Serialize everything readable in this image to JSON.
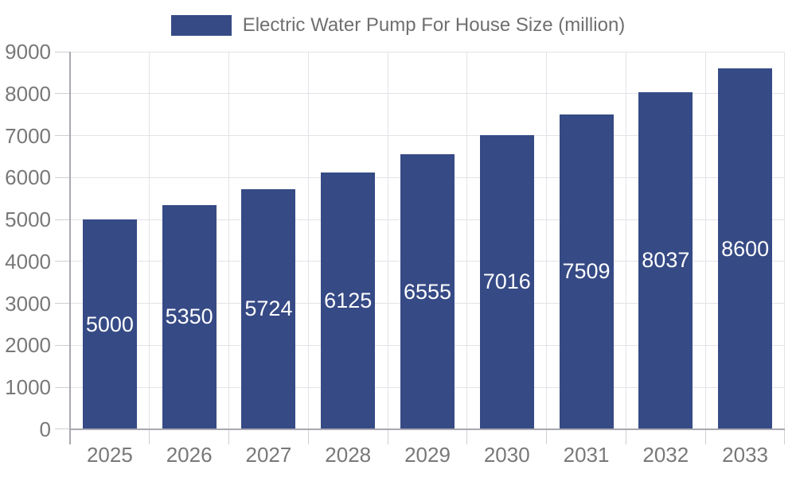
{
  "chart_data": {
    "type": "bar",
    "title": "Electric Water Pump For House Size (million)",
    "legend_label": "Electric Water Pump For House Size (million)",
    "legend_position": "top-center",
    "categories": [
      "2025",
      "2026",
      "2027",
      "2028",
      "2029",
      "2030",
      "2031",
      "2032",
      "2033"
    ],
    "values": [
      5000,
      5350,
      5724,
      6125,
      6555,
      7016,
      7509,
      8037,
      8600
    ],
    "bar_value_labels": [
      "5000",
      "5350",
      "5724",
      "6125",
      "6555",
      "7016",
      "7509",
      "8037",
      "8600"
    ],
    "xlabel": "",
    "ylabel": "",
    "ylim": [
      0,
      9000
    ],
    "yticks": [
      0,
      1000,
      2000,
      3000,
      4000,
      5000,
      6000,
      7000,
      8000,
      9000
    ],
    "grid": {
      "horizontal": true,
      "vertical": true
    },
    "colors": {
      "bar": "#364a85",
      "bar_label": "#ffffff",
      "axis_label": "#787878",
      "legend_text": "#6f6f6f",
      "grid_line": "#e3e3e8",
      "tick_line": "#cfcfd4",
      "axis_line": "#a8a8b0",
      "background": "#ffffff"
    }
  }
}
